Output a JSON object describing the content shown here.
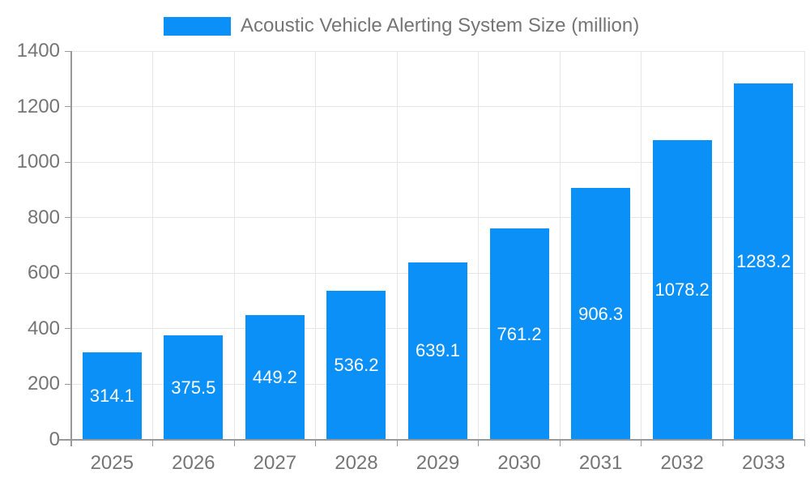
{
  "chart_data": {
    "type": "bar",
    "title": "",
    "legend": "Acoustic Vehicle Alerting System Size (million)",
    "legend_position": "top",
    "categories": [
      "2025",
      "2026",
      "2027",
      "2028",
      "2029",
      "2030",
      "2031",
      "2032",
      "2033"
    ],
    "series": [
      {
        "name": "Acoustic Vehicle Alerting System Size (million)",
        "values": [
          314.1,
          375.5,
          449.2,
          536.2,
          639.1,
          761.2,
          906.3,
          1078.2,
          1283.2
        ]
      }
    ],
    "value_labels": [
      "314.1",
      "375.5",
      "449.2",
      "536.2",
      "639.1",
      "761.2",
      "906.3",
      "1078.2",
      "1283.2"
    ],
    "xlabel": "",
    "ylabel": "",
    "ylim": [
      0,
      1400
    ],
    "yticks": [
      0,
      200,
      400,
      600,
      800,
      1000,
      1200,
      1400
    ],
    "grid": true,
    "value_label_position": "center",
    "colors": {
      "bar": "#0b90f8",
      "grid": "#e6e6e6",
      "axis_line": "#999999",
      "tick_label": "#757575",
      "legend_text": "#757575",
      "value_label": "#ffffff",
      "background": "#ffffff"
    }
  }
}
